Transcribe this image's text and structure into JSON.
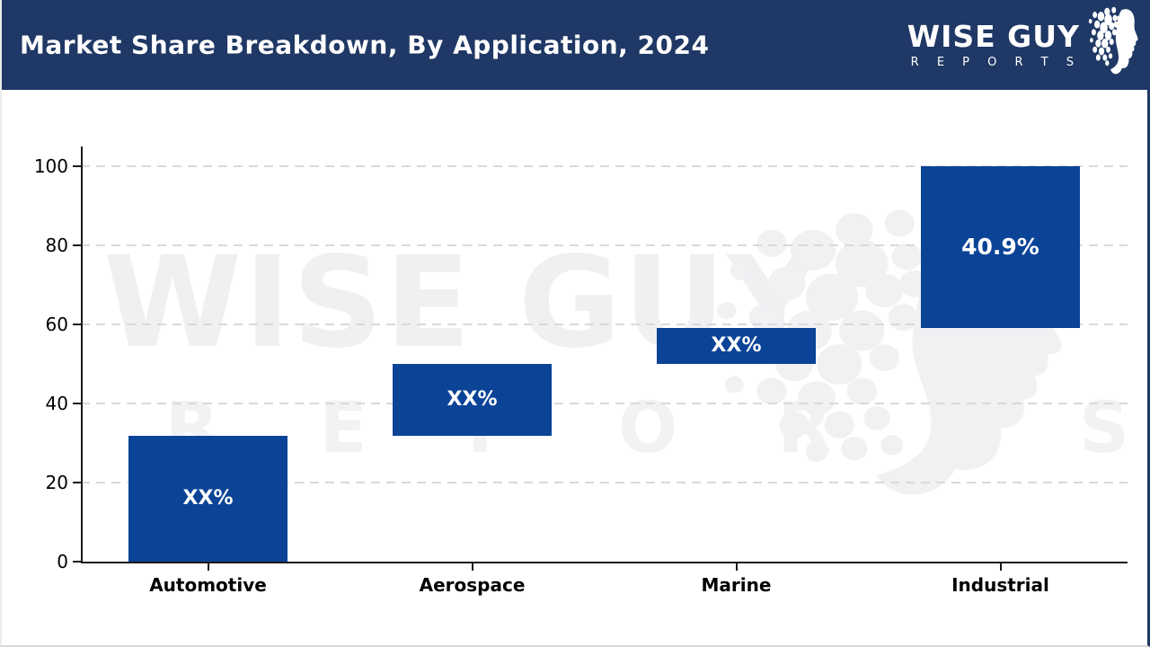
{
  "header": {
    "title": "Market Share Breakdown, By Application, 2024",
    "logo": {
      "wordmark": "WISE GUY",
      "subtext": "R E P O R T S"
    }
  },
  "watermark": {
    "wordmark": "WISE GUY",
    "subtext": "R E P O R T S"
  },
  "colors": {
    "header_bg": "#1f3865",
    "bar": "#0b4397",
    "bar_label": "#ffffff",
    "grid": "#d9d9d9",
    "axis": "#1a1a1a",
    "watermark": "#f0f0f3"
  },
  "chart_data": {
    "type": "bar",
    "subtype": "waterfall-stacked-breakdown",
    "title": "Market Share Breakdown, By Application, 2024",
    "categories": [
      "Automotive",
      "Aerospace",
      "Marine",
      "Industrial"
    ],
    "values": [
      31.8,
      18.2,
      9.1,
      40.9
    ],
    "segment_starts": [
      0,
      31.8,
      50.0,
      59.1
    ],
    "segment_ends": [
      31.8,
      50.0,
      59.1,
      100.0
    ],
    "bar_labels": [
      "XX%",
      "XX%",
      "XX%",
      "40.9%"
    ],
    "xlabel": "",
    "ylabel": "",
    "yticks": [
      0,
      20,
      40,
      60,
      80,
      100
    ],
    "ylim": [
      0,
      105
    ],
    "grid": "horizontal-dashed",
    "legend": "none"
  }
}
